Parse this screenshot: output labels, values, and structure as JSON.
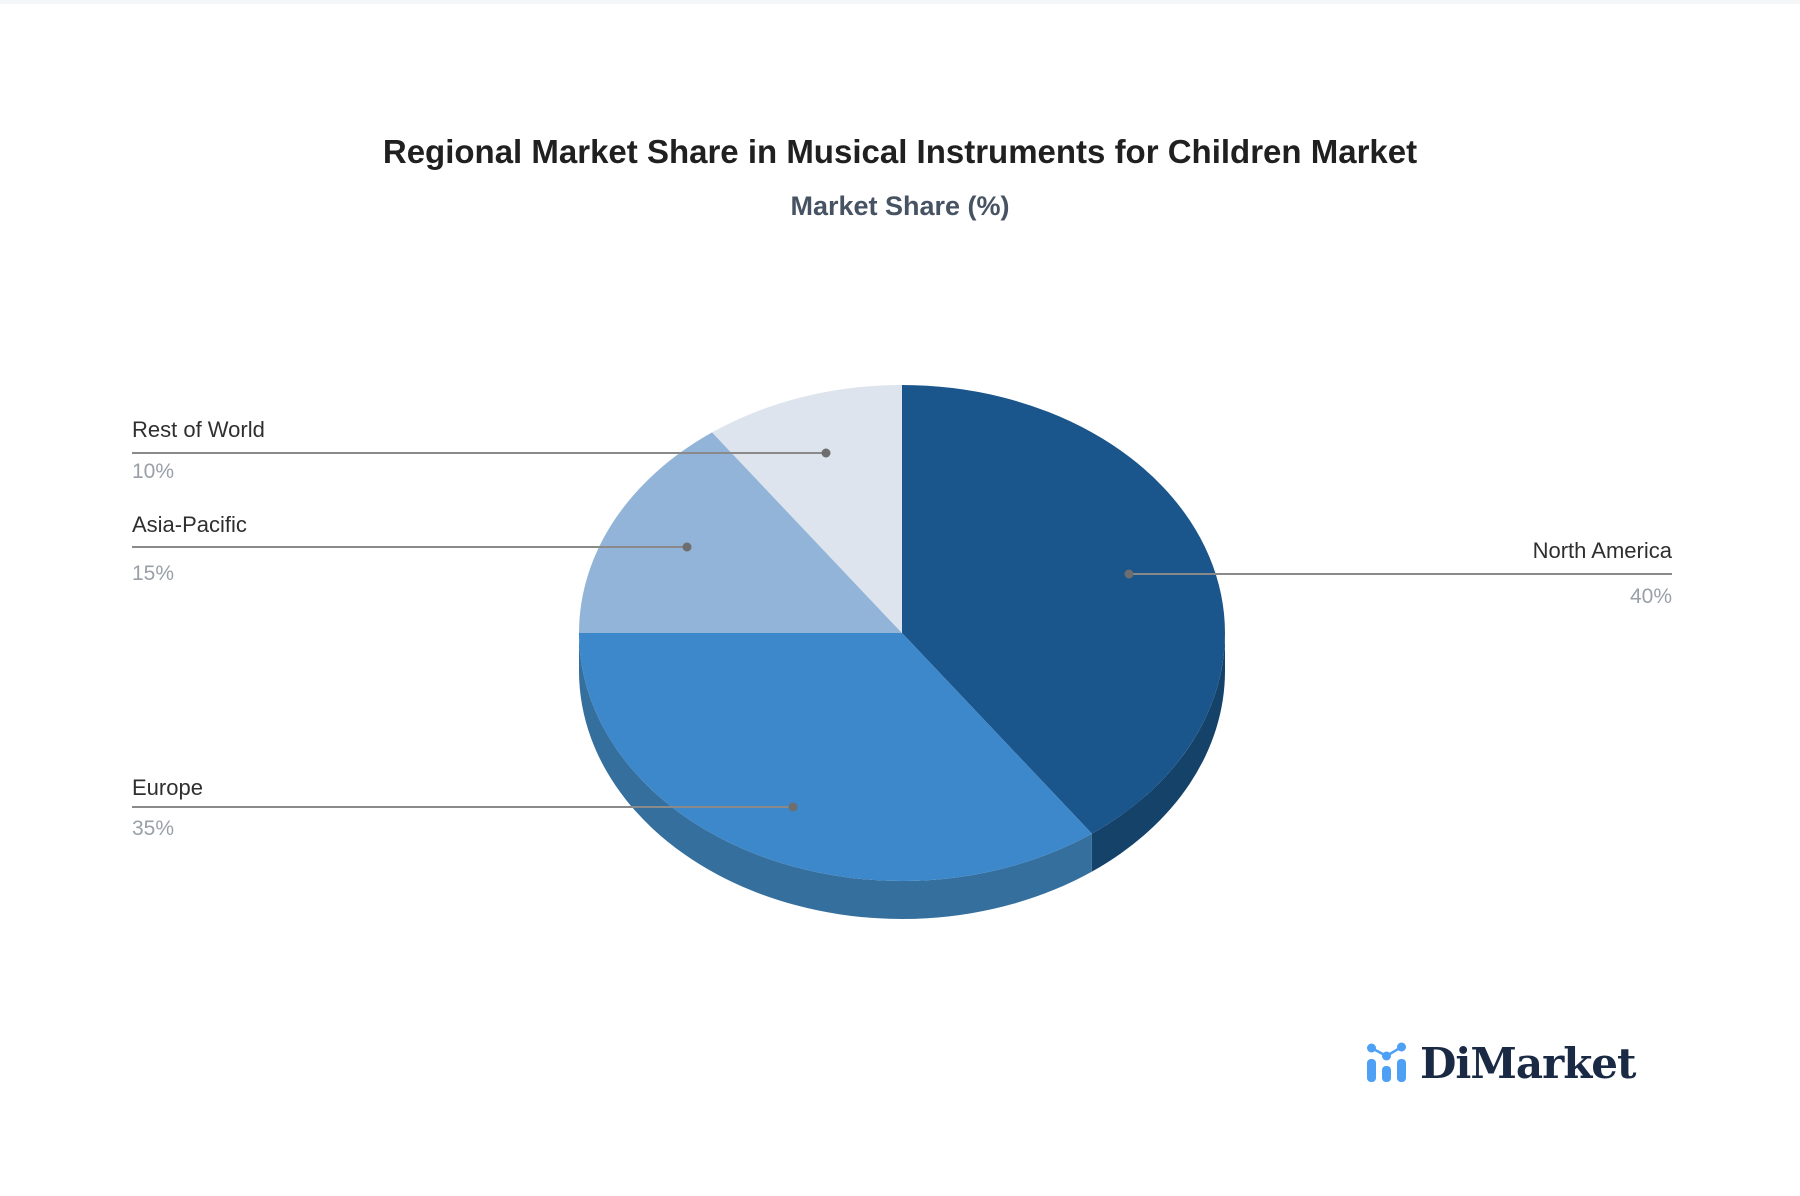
{
  "page": {
    "title": "Regional Market Share in Musical Instruments for Children Market",
    "subtitle": "Market Share (%)"
  },
  "chart_data": {
    "type": "pie",
    "title": "Regional Market Share in Musical Instruments for Children Market",
    "subtitle": "Market Share (%)",
    "unit": "%",
    "style": "3d",
    "start_angle": "12-o-clock",
    "direction": "clockwise",
    "legend_position": "callout-labels",
    "slices": [
      {
        "label": "North America",
        "value": 40,
        "pct_label": "40%",
        "color": "#1a558b",
        "side_color": "#154269",
        "callout_side": "right"
      },
      {
        "label": "Europe",
        "value": 35,
        "pct_label": "35%",
        "color": "#3d88cb",
        "side_color": "#346f9e",
        "callout_side": "left"
      },
      {
        "label": "Asia-Pacific",
        "value": 15,
        "pct_label": "15%",
        "color": "#91b4d8",
        "side_color": "#6f94bd",
        "callout_side": "left"
      },
      {
        "label": "Rest of World",
        "value": 10,
        "pct_label": "10%",
        "color": "#dde4ee",
        "side_color": "#b9c4d6",
        "callout_side": "left"
      }
    ]
  },
  "callout_style": {
    "line_color": "#8a8a8a",
    "dot_color": "#6e6e6e",
    "label_color": "#2f2f2f",
    "pct_color": "#9aa0a8"
  },
  "branding": {
    "logo_text": "DiMarket",
    "logo_icon": "bar-chart-icon",
    "logo_icon_color": "#4da0f4",
    "logo_text_color": "#1a2a45"
  }
}
